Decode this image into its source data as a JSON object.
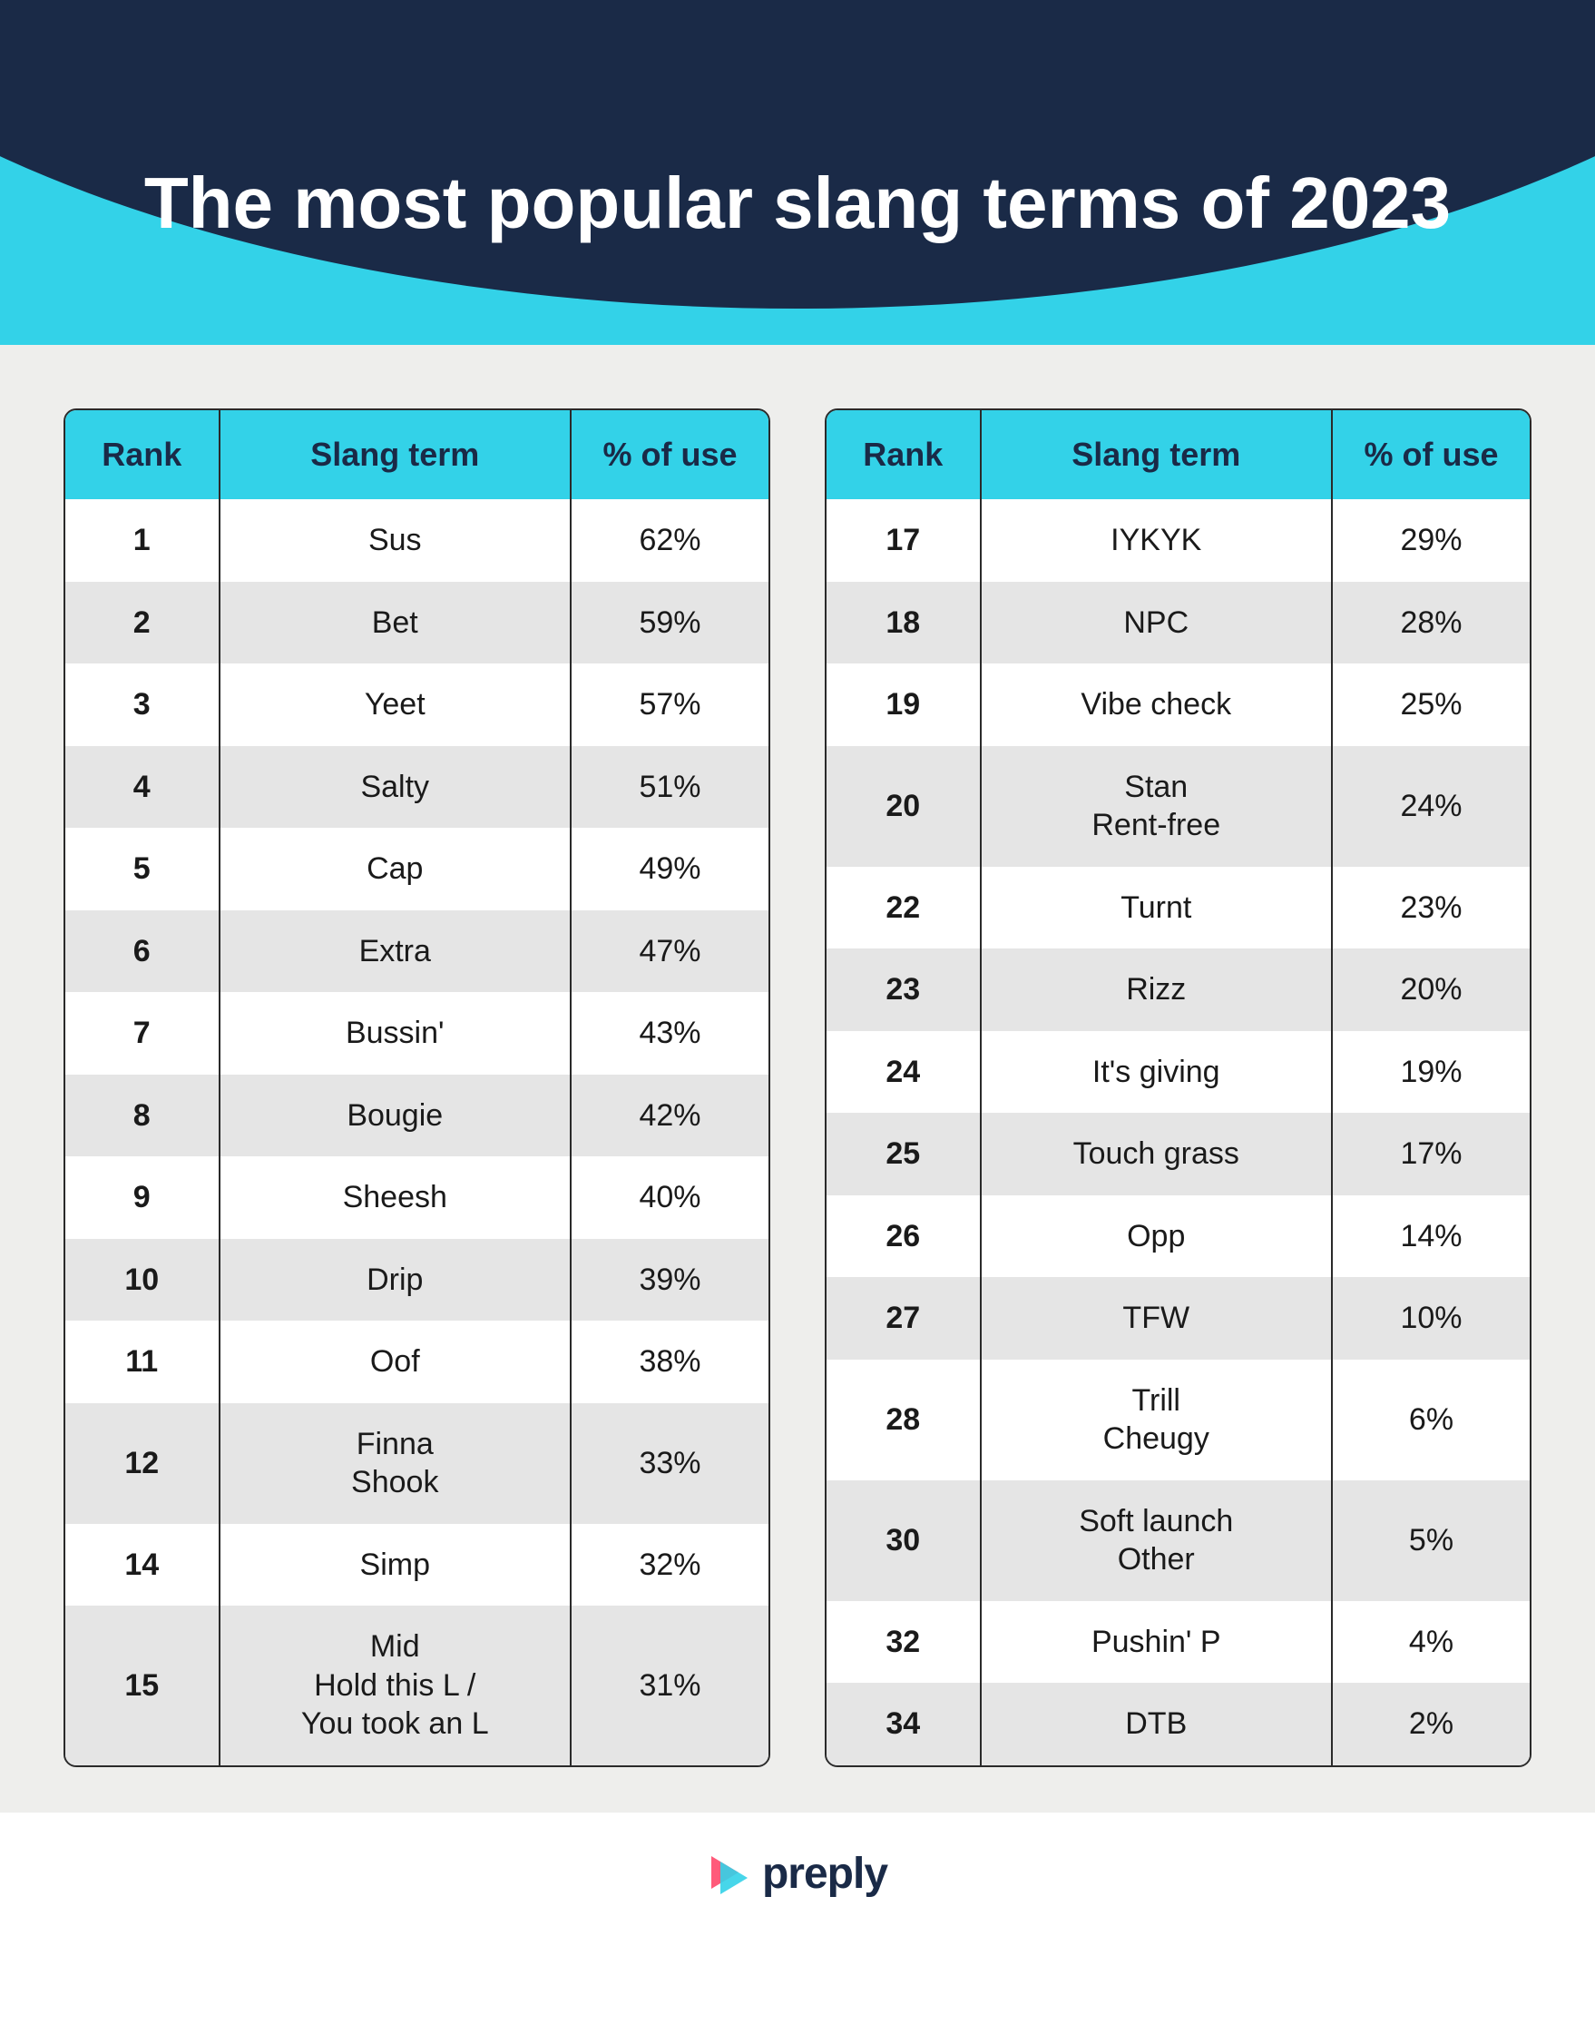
{
  "colors": {
    "header_bg": "#33d2e8",
    "bubble_bg": "#1a2a47",
    "content_bg": "#eeeeec",
    "row_alt_bg": "#e5e5e5",
    "row_bg": "#ffffff",
    "border": "#2a2a2a",
    "title_color": "#ffffff",
    "text_color": "#1a1a1a",
    "logo_pink": "#ff5a7a",
    "logo_cyan": "#33d2e8",
    "logo_text": "#1a2a47"
  },
  "typography": {
    "title_fontsize": 80,
    "header_fontsize": 36,
    "cell_fontsize": 34,
    "logo_fontsize": 48
  },
  "title": "The most popular slang terms of 2023",
  "table": {
    "type": "table",
    "columns": [
      "Rank",
      "Slang term",
      "% of use"
    ],
    "col_widths_pct": [
      22,
      50,
      28
    ],
    "left_rows": [
      {
        "rank": "1",
        "term": "Sus",
        "pct": "62%"
      },
      {
        "rank": "2",
        "term": "Bet",
        "pct": "59%"
      },
      {
        "rank": "3",
        "term": "Yeet",
        "pct": "57%"
      },
      {
        "rank": "4",
        "term": "Salty",
        "pct": "51%"
      },
      {
        "rank": "5",
        "term": "Cap",
        "pct": "49%"
      },
      {
        "rank": "6",
        "term": "Extra",
        "pct": "47%"
      },
      {
        "rank": "7",
        "term": "Bussin'",
        "pct": "43%"
      },
      {
        "rank": "8",
        "term": "Bougie",
        "pct": "42%"
      },
      {
        "rank": "9",
        "term": "Sheesh",
        "pct": "40%"
      },
      {
        "rank": "10",
        "term": "Drip",
        "pct": "39%"
      },
      {
        "rank": "11",
        "term": "Oof",
        "pct": "38%"
      },
      {
        "rank": "12",
        "term": "Finna\nShook",
        "pct": "33%"
      },
      {
        "rank": "14",
        "term": "Simp",
        "pct": "32%"
      },
      {
        "rank": "15",
        "term": "Mid\nHold this L /\nYou took an L",
        "pct": "31%"
      }
    ],
    "right_rows": [
      {
        "rank": "17",
        "term": "IYKYK",
        "pct": "29%"
      },
      {
        "rank": "18",
        "term": "NPC",
        "pct": "28%"
      },
      {
        "rank": "19",
        "term": "Vibe check",
        "pct": "25%"
      },
      {
        "rank": "20",
        "term": "Stan\nRent-free",
        "pct": "24%"
      },
      {
        "rank": "22",
        "term": "Turnt",
        "pct": "23%"
      },
      {
        "rank": "23",
        "term": "Rizz",
        "pct": "20%"
      },
      {
        "rank": "24",
        "term": "It's giving",
        "pct": "19%"
      },
      {
        "rank": "25",
        "term": "Touch grass",
        "pct": "17%"
      },
      {
        "rank": "26",
        "term": "Opp",
        "pct": "14%"
      },
      {
        "rank": "27",
        "term": "TFW",
        "pct": "10%"
      },
      {
        "rank": "28",
        "term": "Trill\nCheugy",
        "pct": "6%"
      },
      {
        "rank": "30",
        "term": "Soft launch\nOther",
        "pct": "5%"
      },
      {
        "rank": "32",
        "term": "Pushin' P",
        "pct": "4%"
      },
      {
        "rank": "34",
        "term": "DTB",
        "pct": "2%"
      }
    ]
  },
  "footer": {
    "brand": "preply"
  }
}
